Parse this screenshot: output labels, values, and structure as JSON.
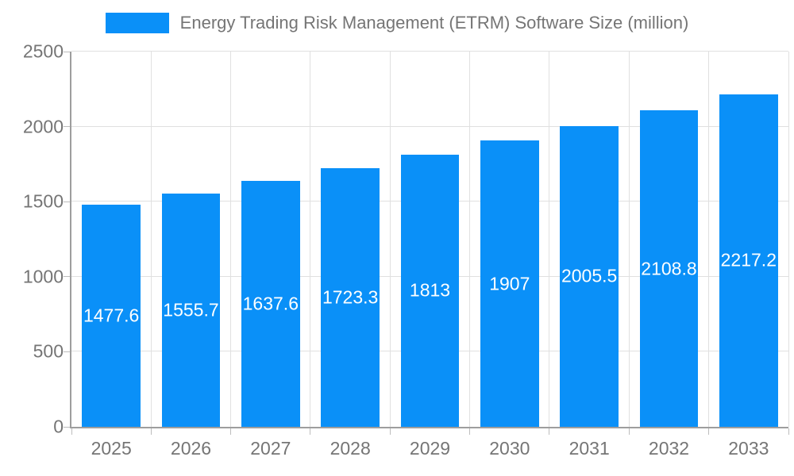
{
  "chart_data": {
    "type": "bar",
    "title": "Energy Trading Risk Management (ETRM) Software Size (million)",
    "categories": [
      "2025",
      "2026",
      "2027",
      "2028",
      "2029",
      "2030",
      "2031",
      "2032",
      "2033"
    ],
    "values": [
      1477.6,
      1555.7,
      1637.6,
      1723.3,
      1813,
      1907,
      2005.5,
      2108.8,
      2217.2
    ],
    "value_labels": [
      "1477.6",
      "1555.7",
      "1637.6",
      "1723.3",
      "1813",
      "1907",
      "2005.5",
      "2108.8",
      "2217.2"
    ],
    "xlabel": "",
    "ylabel": "",
    "ylim": [
      0,
      2500
    ],
    "yticks": [
      0,
      500,
      1000,
      1500,
      2000,
      2500
    ],
    "grid": true,
    "legend_position": "top",
    "bar_width_fraction": 0.735,
    "colors": {
      "bar": "#0a90f8",
      "grid": "#e0e0e0",
      "axis": "#9e9e9e",
      "tick": "#bdbdbd",
      "text": "#757575",
      "bar_label": "#ffffff",
      "background": "#ffffff"
    }
  }
}
